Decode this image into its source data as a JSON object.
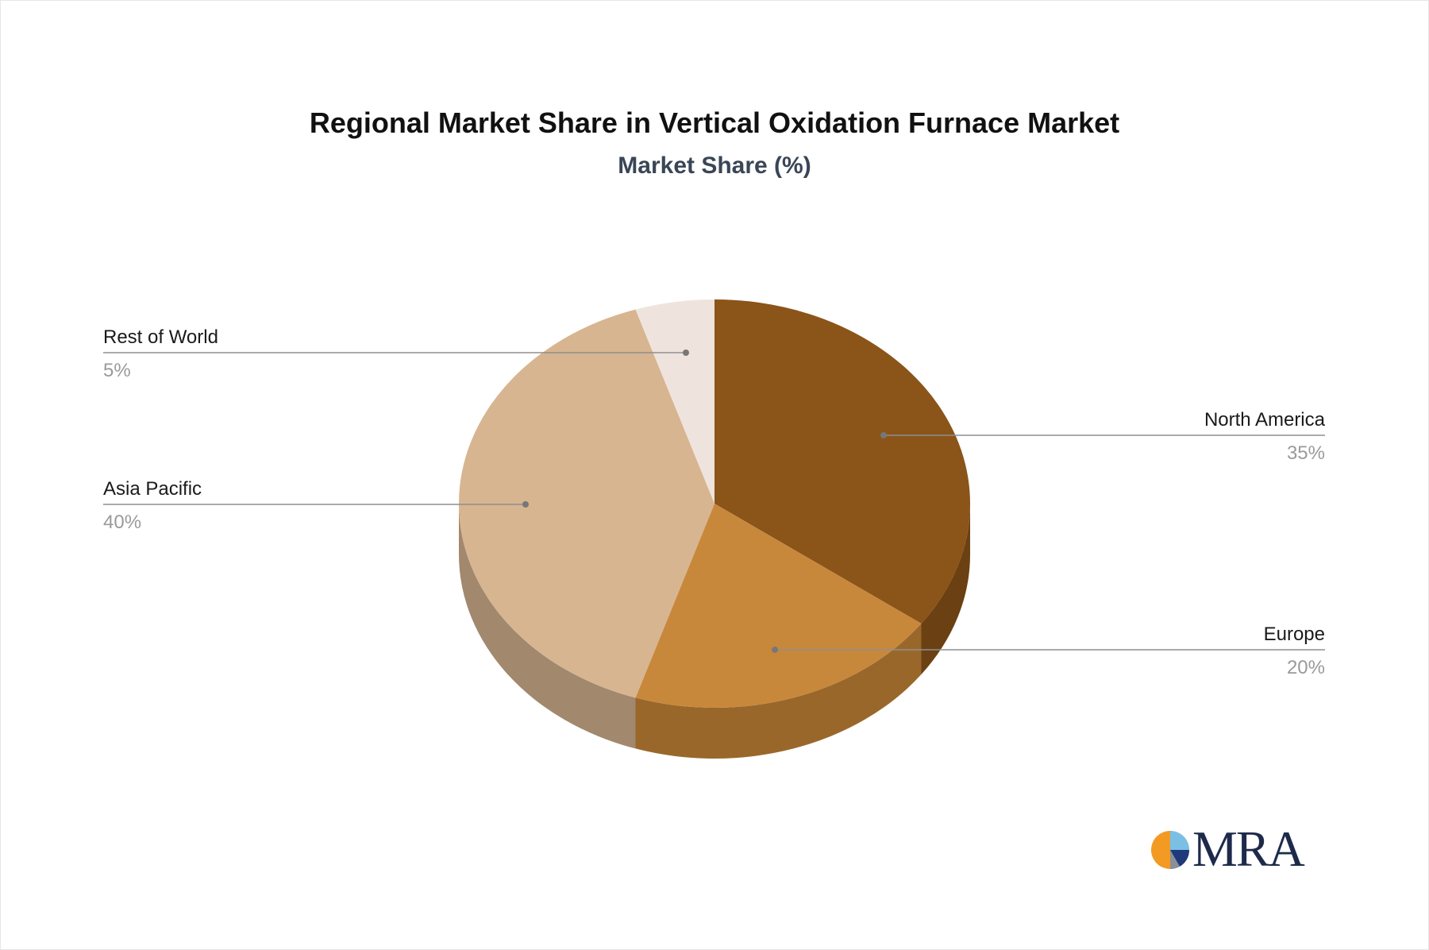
{
  "chart_data": {
    "type": "pie",
    "title": "Regional Market Share in Vertical Oxidation Furnace Market",
    "subtitle": "Market Share (%)",
    "slices": [
      {
        "label": "North America",
        "value": 35,
        "value_label": "35%",
        "color": "#8B5419",
        "side_color": "#6B4012"
      },
      {
        "label": "Europe",
        "value": 20,
        "value_label": "20%",
        "color": "#C8883B",
        "side_color": "#9A672B"
      },
      {
        "label": "Asia Pacific",
        "value": 40,
        "value_label": "40%",
        "color": "#D7B591",
        "side_color": "#A2886D"
      },
      {
        "label": "Rest of World",
        "value": 5,
        "value_label": "5%",
        "color": "#EFE4DD",
        "side_color": "#C9BDB5"
      }
    ]
  },
  "logo": {
    "text": "MRA"
  }
}
